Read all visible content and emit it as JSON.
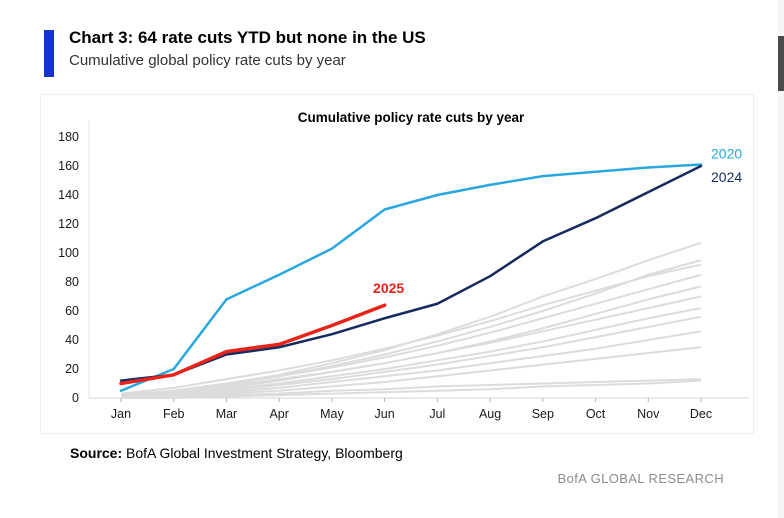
{
  "header": {
    "title": "Chart 3: 64 rate cuts YTD but none in the US",
    "subtitle": "Cumulative global policy rate cuts by year"
  },
  "chart_data": {
    "type": "line",
    "title": "Cumulative policy rate cuts by year",
    "xlabel": "",
    "ylabel": "",
    "categories": [
      "Jan",
      "Feb",
      "Mar",
      "Apr",
      "May",
      "Jun",
      "Jul",
      "Aug",
      "Sep",
      "Oct",
      "Nov",
      "Dec"
    ],
    "ylim": [
      0,
      180
    ],
    "ytick_step": 20,
    "grid": false,
    "legend_position": "end-of-line-labels",
    "background_color": "#dcdcdc",
    "series": [
      {
        "name": "2020",
        "color": "#2aa7df",
        "width": 2.5,
        "label_bold": false,
        "label_anchor": "start",
        "label_offset": [
          10,
          -6
        ],
        "values": [
          5,
          20,
          68,
          85,
          103,
          130,
          140,
          147,
          153,
          156,
          159,
          161
        ]
      },
      {
        "name": "2024",
        "color": "#152a5e",
        "width": 2.5,
        "label_bold": false,
        "label_anchor": "start",
        "label_offset": [
          10,
          16
        ],
        "values": [
          12,
          16,
          30,
          35,
          44,
          55,
          65,
          84,
          108,
          124,
          142,
          160
        ]
      },
      {
        "name": "2025",
        "color": "#e8231a",
        "width": 3.5,
        "label_bold": true,
        "label_anchor": "middle",
        "label_offset": [
          4,
          -12
        ],
        "values": [
          10,
          16,
          32,
          37,
          50,
          64
        ]
      }
    ],
    "background_series": [
      [
        2,
        5,
        10,
        16,
        24,
        33,
        44,
        56,
        70,
        82,
        95,
        107
      ],
      [
        1,
        4,
        9,
        15,
        22,
        30,
        39,
        49,
        60,
        72,
        85,
        95
      ],
      [
        3,
        7,
        13,
        19,
        26,
        34,
        43,
        53,
        64,
        74,
        84,
        92
      ],
      [
        2,
        5,
        10,
        15,
        21,
        28,
        36,
        45,
        55,
        65,
        75,
        85
      ],
      [
        1,
        3,
        7,
        12,
        18,
        24,
        31,
        39,
        48,
        58,
        68,
        77
      ],
      [
        2,
        4,
        8,
        13,
        18,
        24,
        31,
        38,
        46,
        54,
        62,
        70
      ],
      [
        1,
        3,
        6,
        10,
        15,
        20,
        26,
        32,
        39,
        47,
        55,
        62
      ],
      [
        1,
        2,
        5,
        9,
        13,
        18,
        23,
        29,
        35,
        42,
        49,
        56
      ],
      [
        0,
        2,
        4,
        7,
        11,
        15,
        19,
        24,
        29,
        34,
        40,
        46
      ],
      [
        0,
        1,
        3,
        5,
        8,
        11,
        15,
        19,
        23,
        27,
        31,
        35
      ],
      [
        0,
        1,
        2,
        3,
        5,
        6,
        8,
        9,
        10,
        11,
        12,
        13
      ],
      [
        0,
        0,
        1,
        2,
        3,
        4,
        5,
        6,
        8,
        9,
        10,
        12
      ]
    ]
  },
  "source": {
    "label": "Source:",
    "text": " BofA Global Investment Strategy, Bloomberg"
  },
  "footer": {
    "brand": "BofA GLOBAL RESEARCH"
  },
  "colors": {
    "accent_bar": "#1535c8",
    "axis_line": "#d5d5d5",
    "tick": "#b5b5b5",
    "axis_text": "#1a1a1a",
    "brand_text": "#8c8c8c"
  }
}
